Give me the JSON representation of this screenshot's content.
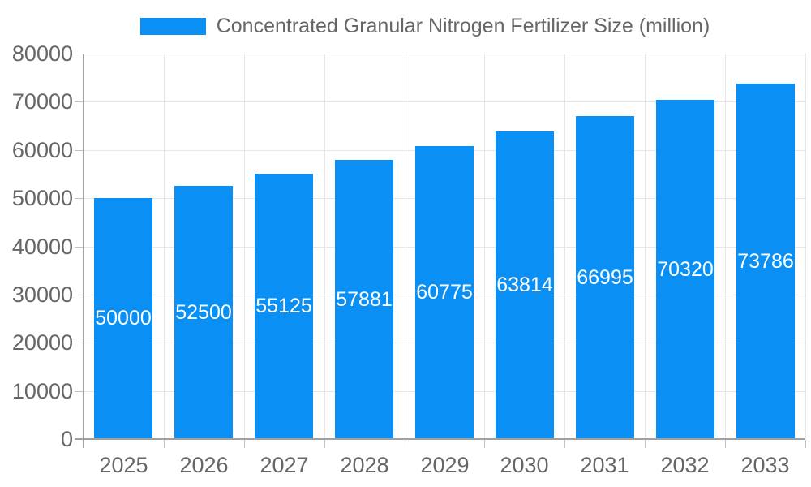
{
  "legend": {
    "series_label": "Concentrated Granular Nitrogen Fertilizer Size (million)"
  },
  "chart_data": {
    "type": "bar",
    "title": "Concentrated Granular Nitrogen Fertilizer Size (million)",
    "xlabel": "",
    "ylabel": "",
    "categories": [
      "2025",
      "2026",
      "2027",
      "2028",
      "2029",
      "2030",
      "2031",
      "2032",
      "2033"
    ],
    "values": [
      50000,
      52500,
      55125,
      57881,
      60775,
      63814,
      66995,
      70320,
      73786
    ],
    "bar_labels": [
      "50000",
      "52500",
      "55125",
      "57881",
      "60775",
      "63814",
      "66995",
      "70320",
      "73786"
    ],
    "ylim": [
      0,
      80000
    ],
    "yticks": [
      0,
      10000,
      20000,
      30000,
      40000,
      50000,
      60000,
      70000,
      80000
    ],
    "ytick_labels": [
      "0",
      "10000",
      "20000",
      "30000",
      "40000",
      "50000",
      "60000",
      "70000",
      "80000"
    ],
    "grid": true,
    "legend_position": "top",
    "colors": {
      "bar": "#0a90f4",
      "grid": "#e6e6e6",
      "axis": "#a0a0a0",
      "tick": "#c2c2c2",
      "label_text": "#666666",
      "value_label": "#ffffff",
      "background": "#ffffff"
    }
  }
}
